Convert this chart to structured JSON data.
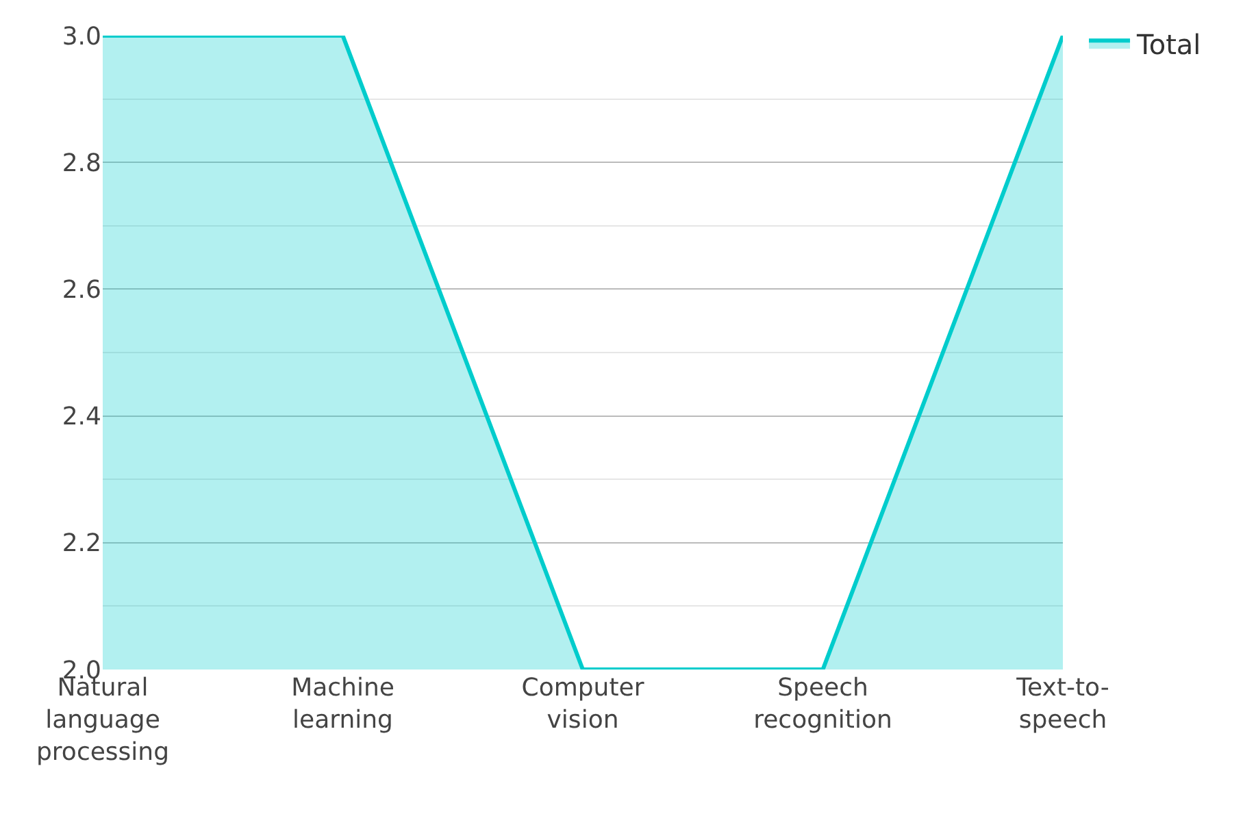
{
  "chart_data": {
    "type": "area",
    "categories": [
      "Natural language processing",
      "Machine learning",
      "Computer vision",
      "Speech recognition",
      "Text-to-speech"
    ],
    "series": [
      {
        "name": "Total",
        "color": "#00cccc",
        "values": [
          3,
          3,
          2,
          2,
          3
        ]
      }
    ],
    "ylim": [
      2,
      3
    ],
    "yticks": [
      {
        "value": 2,
        "label": "2.0"
      },
      {
        "value": 2.2,
        "label": "2.2"
      },
      {
        "value": 2.4,
        "label": "2.4"
      },
      {
        "value": 2.6,
        "label": "2.6"
      },
      {
        "value": 2.8,
        "label": "2.8"
      },
      {
        "value": 3,
        "label": "3.0"
      }
    ],
    "grid": "y",
    "legend": "top right"
  }
}
